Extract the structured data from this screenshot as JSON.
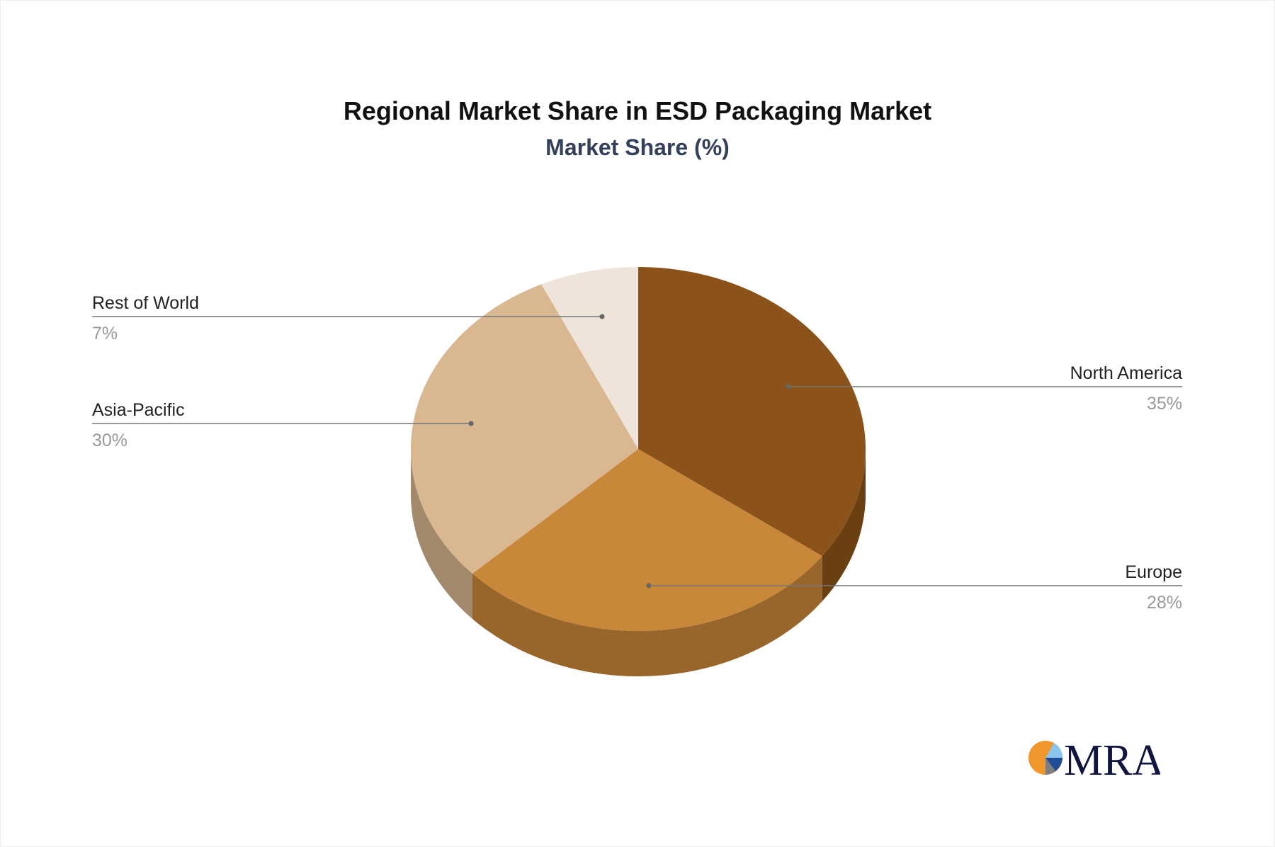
{
  "chart_data": {
    "type": "pie",
    "title": "Regional Market Share in ESD Packaging Market",
    "subtitle": "Market Share (%)",
    "style": "3d",
    "slices": [
      {
        "label": "North America",
        "value": 35,
        "value_label": "35%",
        "color": "#8B5319",
        "side_color": "#6A3F12"
      },
      {
        "label": "Europe",
        "value": 28,
        "value_label": "28%",
        "color": "#C9873A",
        "side_color": "#98652A"
      },
      {
        "label": "Asia-Pacific",
        "value": 30,
        "value_label": "30%",
        "color": "#D8B791",
        "side_color": "#A2896C"
      },
      {
        "label": "Rest of World",
        "value": 7,
        "value_label": "7%",
        "color": "#EEE4DA",
        "side_color": "#B8AFA6"
      }
    ]
  },
  "logo": {
    "text": "MRA",
    "colors": [
      "#F0962A",
      "#8BC4EA",
      "#1F4E96",
      "#7F7F7F",
      "#111640"
    ]
  }
}
